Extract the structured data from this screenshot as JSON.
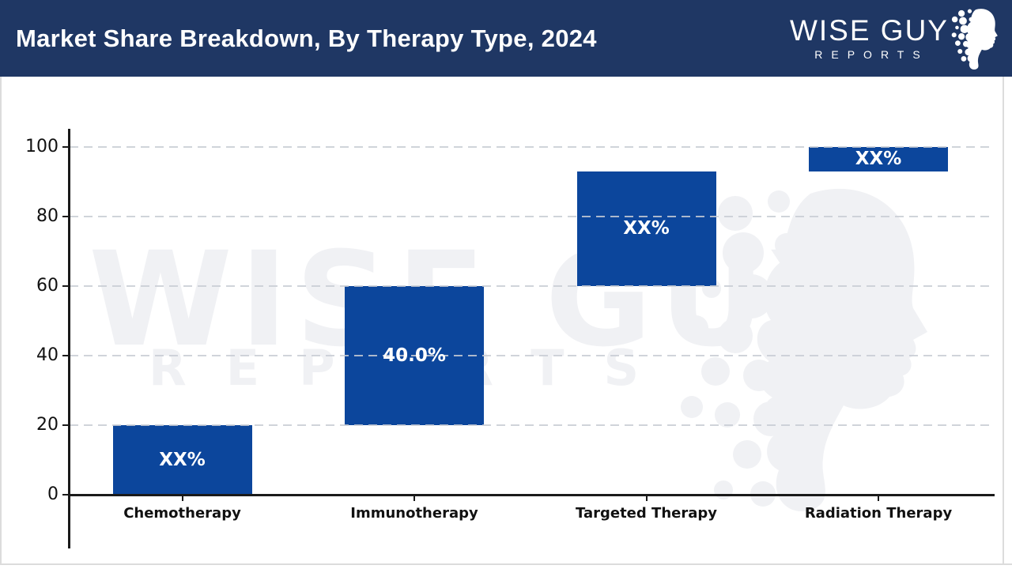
{
  "header": {
    "title": "Market Share Breakdown, By Therapy Type, 2024",
    "logo": {
      "line1": "WISE GUY",
      "line2": "REPORTS"
    }
  },
  "watermark": {
    "line1": "WISE GUY",
    "line2": "REPORTS"
  },
  "colors": {
    "header_bg": "#1f3764",
    "bar": "#0c469c",
    "watermark": "#f0f1f4",
    "grid": "#d6d9de",
    "frame": "#dcdcdc"
  },
  "chart_data": {
    "type": "bar",
    "subtype": "waterfall",
    "title": "Market Share Breakdown, By Therapy Type, 2024",
    "xlabel": "",
    "ylabel": "",
    "ylim": [
      0,
      105
    ],
    "y_ticks": [
      0,
      20,
      40,
      60,
      80,
      100
    ],
    "grid": "horizontal-dashed",
    "legend": "none",
    "categories": [
      "Chemotherapy",
      "Immunotherapy",
      "Targeted Therapy",
      "Radiation Therapy"
    ],
    "segments": [
      {
        "category": "Chemotherapy",
        "start": 0,
        "end": 20,
        "value_label": "XX%"
      },
      {
        "category": "Immunotherapy",
        "start": 20,
        "end": 60,
        "value_label": "40.0%"
      },
      {
        "category": "Targeted Therapy",
        "start": 60,
        "end": 93,
        "value_label": "XX%"
      },
      {
        "category": "Radiation Therapy",
        "start": 93,
        "end": 100,
        "value_label": "XX%"
      }
    ]
  }
}
